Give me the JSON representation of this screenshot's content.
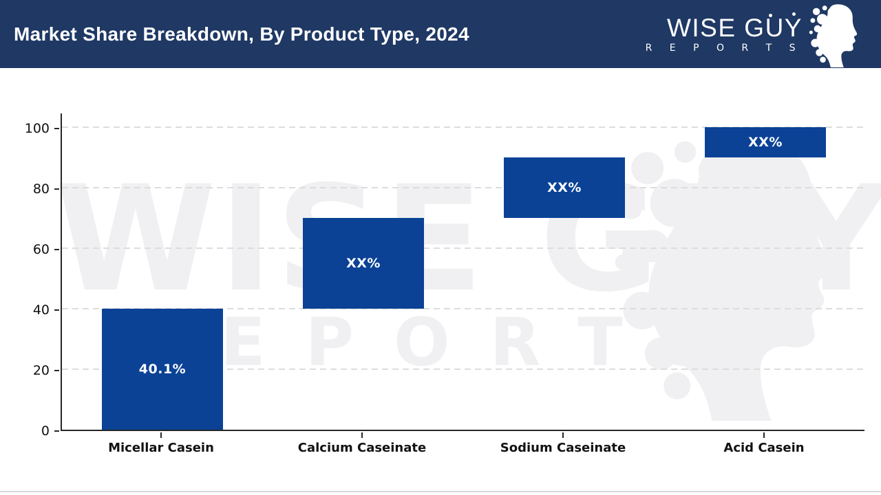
{
  "header": {
    "title": "Market Share Breakdown, By Product Type, 2024",
    "logo": {
      "line1": "WISE GUY",
      "line2": "R E P O R T S"
    }
  },
  "watermark": {
    "line1": "WISE GUY",
    "line2": "REPORTS"
  },
  "colors": {
    "header_bg": "#1f3864",
    "bar_blue": "#0b4296",
    "grid": "#dcdcdc",
    "axis": "#262626",
    "bar_label": "#ffffff",
    "watermark": "#f0f0f2"
  },
  "chart_data": {
    "type": "bar",
    "subtype": "floating-segment-waterfall",
    "title": "Market Share Breakdown, By Product Type, 2024",
    "categories": [
      "Micellar Casein",
      "Calcium Caseinate",
      "Sodium Caseinate",
      "Acid Casein"
    ],
    "bars": [
      {
        "category": "Micellar Casein",
        "start": 0,
        "end": 40.1,
        "label": "40.1%"
      },
      {
        "category": "Calcium Caseinate",
        "start": 40,
        "end": 70,
        "label": "XX%"
      },
      {
        "category": "Sodium Caseinate",
        "start": 70,
        "end": 90,
        "label": "XX%"
      },
      {
        "category": "Acid Casein",
        "start": 90,
        "end": 100,
        "label": "XX%"
      }
    ],
    "ylabel": "",
    "xlabel": "",
    "ylim": [
      0,
      105
    ],
    "yticks": [
      0,
      20,
      40,
      60,
      80,
      100
    ],
    "grid": "horizontal-dashed",
    "legend": "none"
  }
}
